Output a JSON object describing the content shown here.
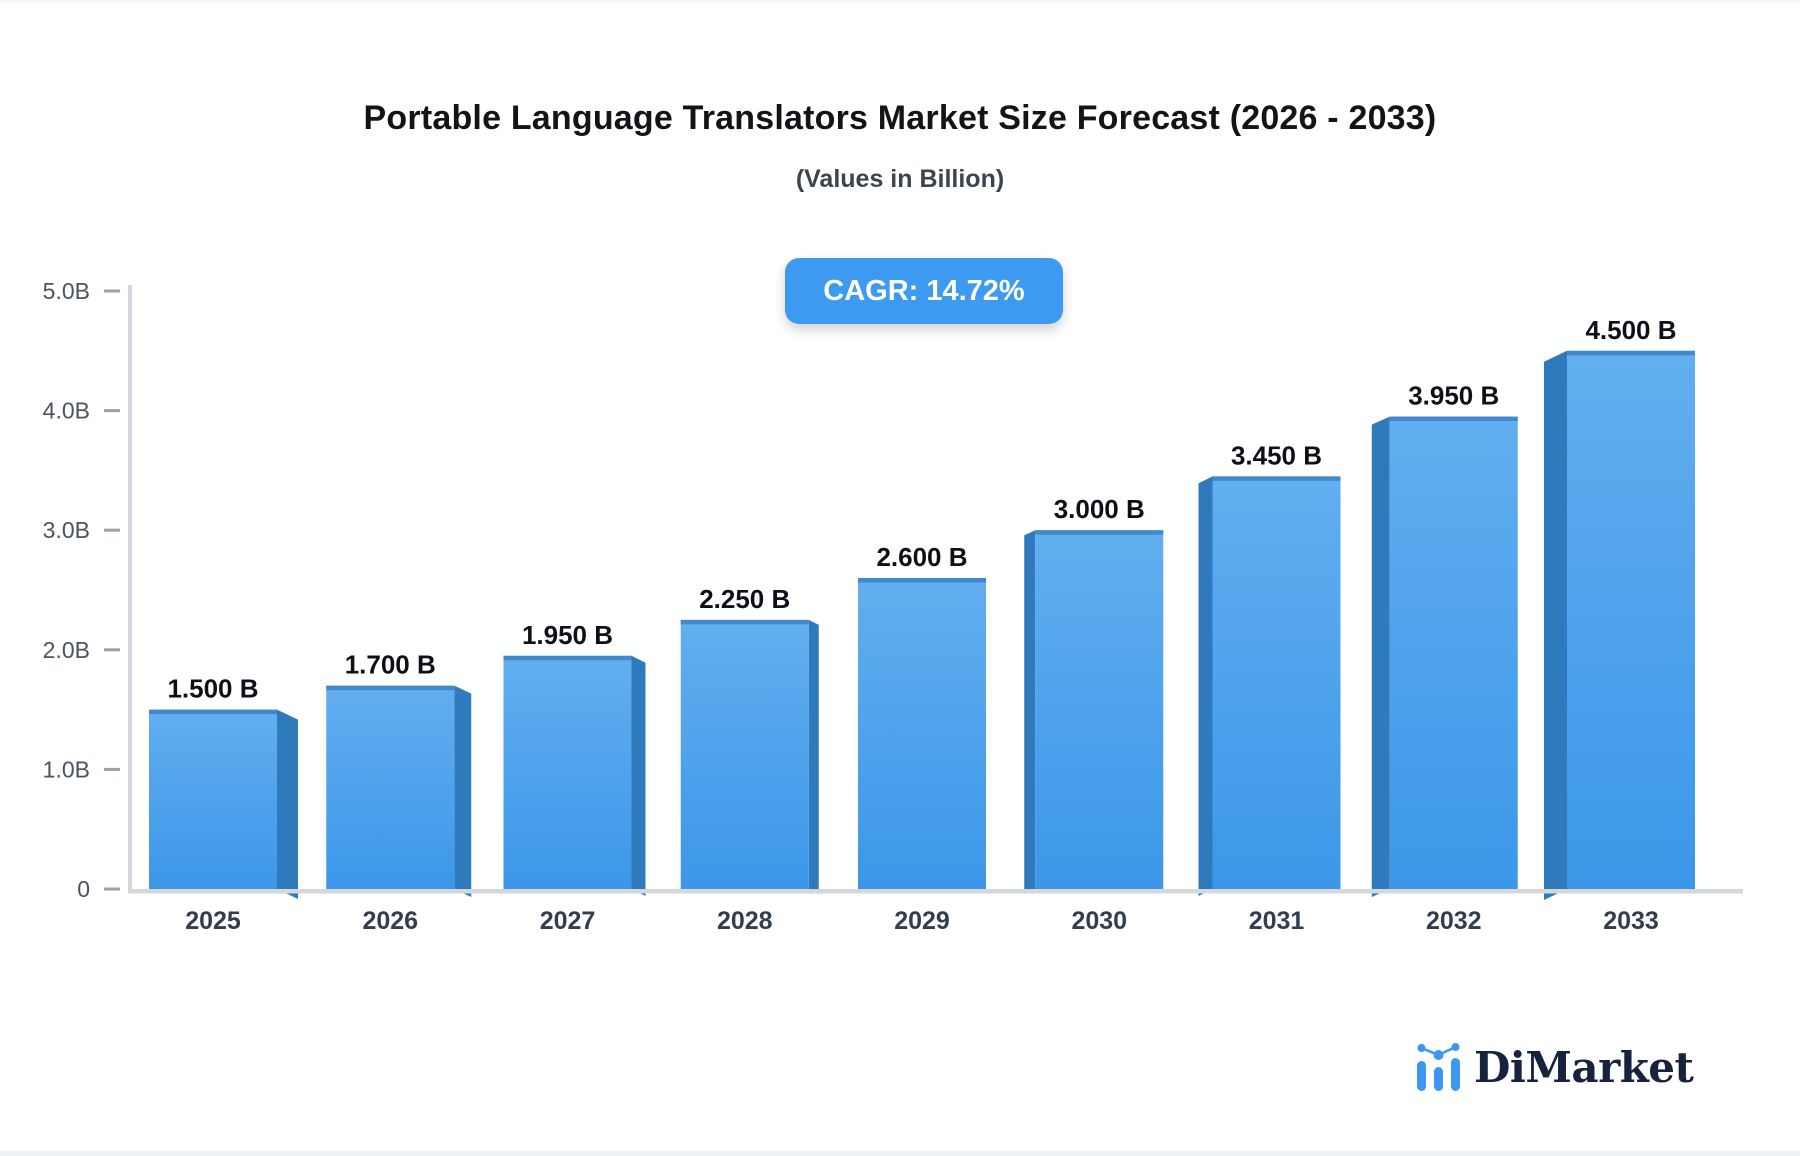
{
  "header": {
    "title": "Portable Language Translators Market Size Forecast (2026 - 2033)",
    "subtitle": "(Values in Billion)"
  },
  "badge": {
    "label": "CAGR: 14.72%",
    "bg_color": "#3c9af0",
    "text_color": "#ffffff"
  },
  "chart_data": {
    "type": "bar",
    "title": "Portable Language Translators Market Size Forecast (2026 - 2033)",
    "subtitle": "(Values in Billion)",
    "categories": [
      "2025",
      "2026",
      "2027",
      "2028",
      "2029",
      "2030",
      "2031",
      "2032",
      "2033"
    ],
    "values": [
      1.5,
      1.7,
      1.95,
      2.25,
      2.6,
      3.0,
      3.45,
      3.95,
      4.5
    ],
    "bar_labels": [
      "1.500 B",
      "1.700 B",
      "1.950 B",
      "2.250 B",
      "2.600 B",
      "3.000 B",
      "3.450 B",
      "3.950 B",
      "4.500 B"
    ],
    "xlabel": "",
    "ylabel": "",
    "ylim": [
      0,
      5
    ],
    "y_ticks": [
      "0",
      "1.0B",
      "2.0B",
      "3.0B",
      "4.0B",
      "5.0B"
    ],
    "grid": false,
    "legend": false,
    "style": "3d-perspective-bars",
    "colors": {
      "bar_front_top": "#62aef0",
      "bar_front_bottom": "#3c97e8",
      "bar_side": "#2e7abc",
      "bar_top_edge": "#4189cb",
      "axis_line": "#d4d7db",
      "tick_mark": "#98a1ac",
      "y_label": "#4a5460",
      "x_label": "#323e4e",
      "value_label": "#0d1117"
    }
  },
  "logo": {
    "text": "DiMarket",
    "icon": "bar-chart-logo-icon",
    "icon_color": "#3d96ef",
    "text_color": "#16233c"
  }
}
